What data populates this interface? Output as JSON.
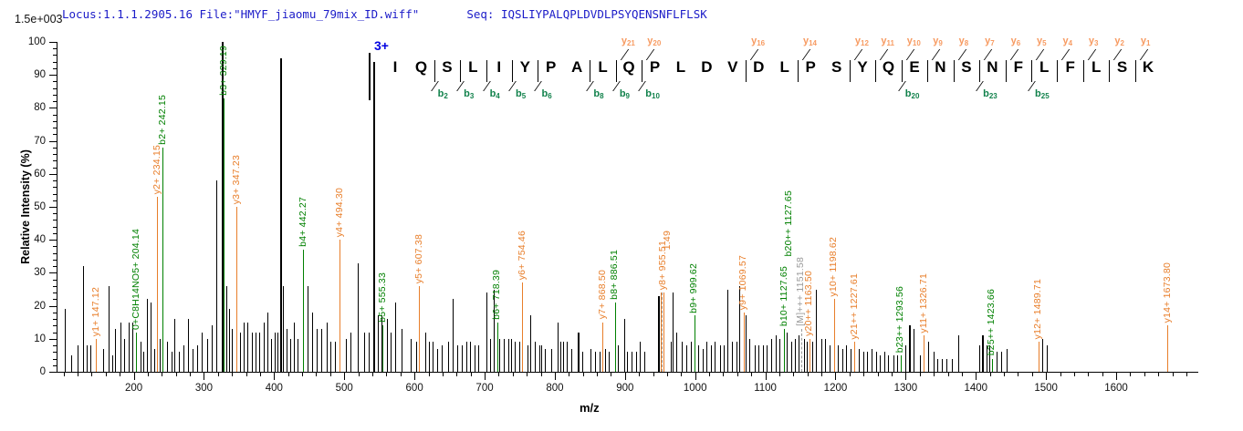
{
  "header": {
    "locus_file": "Locus:1.1.1.2905.16 File:\"HMYF_jiaomu_79mix_ID.wiff\"",
    "seq_label": "Seq: IQSLIYPALQPLDVDLPSYQENSNFLFLSK"
  },
  "scale_label": "1.5e+003",
  "charge_state": "3+",
  "sequence_panel": {
    "residues": [
      "I",
      "Q",
      "S",
      "L",
      "I",
      "Y",
      "P",
      "A",
      "L",
      "Q",
      "P",
      "L",
      "D",
      "V",
      "D",
      "L",
      "P",
      "S",
      "Y",
      "Q",
      "E",
      "N",
      "S",
      "N",
      "F",
      "L",
      "F",
      "L",
      "S",
      "K"
    ],
    "gaps": [
      {
        "after": 2,
        "b": "b2"
      },
      {
        "after": 3,
        "b": "b3"
      },
      {
        "after": 4,
        "b": "b4"
      },
      {
        "after": 5,
        "b": "b5"
      },
      {
        "after": 6,
        "b": "b6"
      },
      {
        "after": 8,
        "b": "b8"
      },
      {
        "after": 9,
        "b": "b9",
        "y": "y21"
      },
      {
        "after": 10,
        "b": "b10",
        "y": "y20"
      },
      {
        "after": 14,
        "y": "y16"
      },
      {
        "after": 16,
        "y": "y14"
      },
      {
        "after": 18,
        "y": "y12"
      },
      {
        "after": 19,
        "y": "y11"
      },
      {
        "after": 20,
        "b": "b20",
        "y": "y10"
      },
      {
        "after": 21,
        "y": "y9"
      },
      {
        "after": 22,
        "y": "y8"
      },
      {
        "after": 23,
        "b": "b23",
        "y": "y7"
      },
      {
        "after": 24,
        "y": "y6"
      },
      {
        "after": 25,
        "b": "b25",
        "y": "y5"
      },
      {
        "after": 26,
        "y": "y4"
      },
      {
        "after": 27,
        "y": "y3"
      },
      {
        "after": 28,
        "y": "y2"
      },
      {
        "after": 29,
        "y": "y1"
      }
    ]
  },
  "axes": {
    "x": {
      "title": "m/z",
      "major_ticks": [
        200,
        300,
        400,
        500,
        600,
        700,
        800,
        900,
        1000,
        1100,
        1200,
        1300,
        1400,
        1500,
        1600
      ],
      "minor_step": 20,
      "range": [
        90,
        1717
      ]
    },
    "y": {
      "title": "Relative  Intensity (%)",
      "ticks": [
        0,
        10,
        20,
        30,
        40,
        50,
        60,
        70,
        80,
        90,
        100
      ],
      "minor_step": 2,
      "range": [
        0,
        100
      ]
    }
  },
  "chart_data": {
    "type": "bar",
    "subtype": "mass-spectrum",
    "xlabel": "m/z",
    "ylabel": "Relative Intensity (%)",
    "xlim": [
      90,
      1717
    ],
    "ylim": [
      0,
      100
    ],
    "grid": false,
    "colors": {
      "black_peak": "#000000",
      "b_ion_green": "#008000",
      "y_ion_orange": "#e87e2a",
      "precursor_gray": "#9a9a9a",
      "header_blue": "#1b1bc8",
      "charge_blue": "#0000e0",
      "seq_y_label_orange": "#f79b62",
      "seq_b_label_green": "#12824c"
    },
    "peak_format": "[mz, intensity_pct, optional_width_px]",
    "peaks_black": [
      [
        103,
        19
      ],
      [
        112,
        5
      ],
      [
        120,
        8
      ],
      [
        129,
        32
      ],
      [
        134,
        8
      ],
      [
        139,
        8
      ],
      [
        157,
        7
      ],
      [
        165,
        26
      ],
      [
        170,
        5
      ],
      [
        174,
        13
      ],
      [
        182,
        15
      ],
      [
        187,
        10
      ],
      [
        193,
        15
      ],
      [
        198,
        15
      ],
      [
        210,
        9
      ],
      [
        214,
        6
      ],
      [
        219,
        22
      ],
      [
        224,
        21
      ],
      [
        230,
        7
      ],
      [
        238,
        10
      ],
      [
        248,
        9
      ],
      [
        254,
        6
      ],
      [
        259,
        16
      ],
      [
        265,
        6
      ],
      [
        271,
        8
      ],
      [
        278,
        16
      ],
      [
        284,
        7
      ],
      [
        291,
        8
      ],
      [
        298,
        12
      ],
      [
        305,
        10
      ],
      [
        312,
        14
      ],
      [
        318,
        58
      ],
      [
        326,
        100,
        2
      ],
      [
        333,
        26
      ],
      [
        336,
        19
      ],
      [
        341,
        13
      ],
      [
        352,
        12
      ],
      [
        357,
        15
      ],
      [
        363,
        15
      ],
      [
        369,
        12
      ],
      [
        374,
        12
      ],
      [
        380,
        12
      ],
      [
        386,
        15
      ],
      [
        391,
        18
      ],
      [
        396,
        10
      ],
      [
        402,
        12
      ],
      [
        406,
        12
      ],
      [
        409,
        95,
        2
      ],
      [
        413,
        26
      ],
      [
        418,
        13
      ],
      [
        424,
        10
      ],
      [
        429,
        15
      ],
      [
        434,
        10
      ],
      [
        448,
        26
      ],
      [
        455,
        18
      ],
      [
        461,
        13
      ],
      [
        468,
        13
      ],
      [
        475,
        15
      ],
      [
        481,
        9
      ],
      [
        487,
        9
      ],
      [
        503,
        10
      ],
      [
        510,
        12
      ],
      [
        520,
        33
      ],
      [
        529,
        12
      ],
      [
        535,
        12
      ],
      [
        542,
        94,
        2
      ],
      [
        549,
        17
      ],
      [
        553,
        17
      ],
      [
        561,
        16
      ],
      [
        567,
        12
      ],
      [
        573,
        21
      ],
      [
        582,
        13
      ],
      [
        595,
        10
      ],
      [
        603,
        9
      ],
      [
        616,
        12
      ],
      [
        621,
        9
      ],
      [
        627,
        9
      ],
      [
        633,
        7
      ],
      [
        640,
        8
      ],
      [
        648,
        9
      ],
      [
        655,
        22
      ],
      [
        662,
        8
      ],
      [
        668,
        8
      ],
      [
        674,
        9
      ],
      [
        680,
        9
      ],
      [
        686,
        8
      ],
      [
        692,
        8
      ],
      [
        703,
        24
      ],
      [
        708,
        10
      ],
      [
        714,
        25
      ],
      [
        722,
        10
      ],
      [
        728,
        10
      ],
      [
        734,
        10
      ],
      [
        738,
        10
      ],
      [
        744,
        9
      ],
      [
        750,
        9
      ],
      [
        762,
        8
      ],
      [
        766,
        17
      ],
      [
        772,
        9
      ],
      [
        778,
        8
      ],
      [
        781,
        8
      ],
      [
        787,
        7
      ],
      [
        796,
        7
      ],
      [
        805,
        15
      ],
      [
        809,
        9
      ],
      [
        813,
        9
      ],
      [
        818,
        9
      ],
      [
        824,
        7
      ],
      [
        833,
        12,
        2
      ],
      [
        840,
        6
      ],
      [
        852,
        7
      ],
      [
        858,
        6
      ],
      [
        864,
        6
      ],
      [
        872,
        7
      ],
      [
        877,
        6
      ],
      [
        891,
        8
      ],
      [
        900,
        16
      ],
      [
        904,
        6
      ],
      [
        910,
        6
      ],
      [
        916,
        6
      ],
      [
        922,
        9
      ],
      [
        928,
        6
      ],
      [
        948,
        23,
        2
      ],
      [
        966,
        9
      ],
      [
        969,
        24
      ],
      [
        974,
        12
      ],
      [
        981,
        9
      ],
      [
        988,
        8
      ],
      [
        994,
        9
      ],
      [
        1005,
        8
      ],
      [
        1011,
        7
      ],
      [
        1017,
        9
      ],
      [
        1023,
        8
      ],
      [
        1029,
        9
      ],
      [
        1036,
        8
      ],
      [
        1042,
        8
      ],
      [
        1047,
        25
      ],
      [
        1053,
        9
      ],
      [
        1059,
        9
      ],
      [
        1064,
        26
      ],
      [
        1072,
        17
      ],
      [
        1078,
        10
      ],
      [
        1085,
        8
      ],
      [
        1091,
        8
      ],
      [
        1097,
        8
      ],
      [
        1103,
        8
      ],
      [
        1109,
        10
      ],
      [
        1115,
        11
      ],
      [
        1121,
        10
      ],
      [
        1131,
        12
      ],
      [
        1137,
        9
      ],
      [
        1143,
        10
      ],
      [
        1148,
        11
      ],
      [
        1156,
        10
      ],
      [
        1160,
        9
      ],
      [
        1168,
        9
      ],
      [
        1173,
        25
      ],
      [
        1180,
        10
      ],
      [
        1186,
        10
      ],
      [
        1192,
        8
      ],
      [
        1204,
        8
      ],
      [
        1210,
        7
      ],
      [
        1216,
        8
      ],
      [
        1222,
        7
      ],
      [
        1234,
        7
      ],
      [
        1240,
        6
      ],
      [
        1246,
        6
      ],
      [
        1252,
        7
      ],
      [
        1258,
        6
      ],
      [
        1264,
        5
      ],
      [
        1270,
        6
      ],
      [
        1276,
        5
      ],
      [
        1283,
        5
      ],
      [
        1289,
        5
      ],
      [
        1300,
        8
      ],
      [
        1305,
        14,
        2
      ],
      [
        1312,
        13
      ],
      [
        1321,
        5
      ],
      [
        1333,
        9
      ],
      [
        1340,
        6
      ],
      [
        1346,
        4
      ],
      [
        1352,
        4
      ],
      [
        1359,
        4
      ],
      [
        1366,
        4
      ],
      [
        1375,
        11
      ],
      [
        1405,
        8
      ],
      [
        1409,
        11,
        2
      ],
      [
        1416,
        8
      ],
      [
        1420,
        8
      ],
      [
        1430,
        6
      ],
      [
        1437,
        6
      ],
      [
        1444,
        7
      ],
      [
        1495,
        10
      ],
      [
        1502,
        8
      ]
    ],
    "peaks_annotated": [
      {
        "mz": 147.12,
        "pct": 10,
        "color": "orange",
        "label": "y1+ 147.12"
      },
      {
        "mz": 204.14,
        "pct": 12,
        "color": "green",
        "label": "0+C8H14NO5+ 204.14"
      },
      {
        "mz": 234.15,
        "pct": 53,
        "color": "orange",
        "label": "y2+ 234.15"
      },
      {
        "mz": 242.15,
        "pct": 68,
        "color": "green",
        "label": "b2+ 242.15"
      },
      {
        "mz": 329.19,
        "pct": 83,
        "color": "green",
        "label": "b3+ 329.19"
      },
      {
        "mz": 347.23,
        "pct": 50,
        "color": "orange",
        "label": "y3+ 347.23"
      },
      {
        "mz": 442.27,
        "pct": 37,
        "color": "green",
        "label": "b4+ 442.27"
      },
      {
        "mz": 494.3,
        "pct": 40,
        "color": "orange",
        "label": "y4+ 494.30"
      },
      {
        "mz": 555.33,
        "pct": 14,
        "color": "green",
        "label": "b5+ 555.33"
      },
      {
        "mz": 607.38,
        "pct": 26,
        "color": "orange",
        "label": "y5+ 607.38"
      },
      {
        "mz": 718.39,
        "pct": 15,
        "color": "green",
        "label": "b6+ 718.39"
      },
      {
        "mz": 754.46,
        "pct": 27,
        "color": "orange",
        "label": "y6+ 754.46"
      },
      {
        "mz": 868.5,
        "pct": 15,
        "color": "orange",
        "label": "y7+ 868.50"
      },
      {
        "mz": 886.51,
        "pct": 21,
        "color": "green",
        "label": "b8+ 886.51"
      },
      {
        "mz": 951.49,
        "pct": 24,
        "color": "orange",
        "label": ""
      },
      {
        "mz": 952.8,
        "pct": 24,
        "color": "gray",
        "label": "",
        "dashed": true
      },
      {
        "mz": 955.51,
        "pct": 24,
        "color": "orange",
        "label": "y8+ 955.51"
      },
      {
        "mz": 999.62,
        "pct": 17,
        "color": "green",
        "label": "b9+ 999.62"
      },
      {
        "mz": 1069.57,
        "pct": 18,
        "color": "orange",
        "label": "y9+ 1069.57"
      },
      {
        "mz": 1127.65,
        "pct": 13,
        "color": "green",
        "label": "b10+ 1127.65"
      },
      {
        "mz": 1151.58,
        "pct": 13,
        "color": "gray",
        "label": "[M]+++ 1151.58",
        "dashed": true
      },
      {
        "mz": 1163.5,
        "pct": 10,
        "color": "orange",
        "label": "y20++ 1163.50"
      },
      {
        "mz": 1198.62,
        "pct": 22,
        "color": "orange",
        "label": "y10+ 1198.62"
      },
      {
        "mz": 1227.61,
        "pct": 9,
        "color": "orange",
        "label": "y21++ 1227.61"
      },
      {
        "mz": 1293.56,
        "pct": 5,
        "color": "green",
        "label": "b23++ 1293.56"
      },
      {
        "mz": 1326.71,
        "pct": 11,
        "color": "orange",
        "label": "y11+ 1326.71"
      },
      {
        "mz": 1423.66,
        "pct": 4,
        "color": "green",
        "label": "b25++ 1423.66"
      },
      {
        "mz": 1489.71,
        "pct": 9,
        "color": "orange",
        "label": "y12+ 1489.71"
      },
      {
        "mz": 1673.8,
        "pct": 14,
        "color": "orange",
        "label": "y14+ 1673.80"
      }
    ],
    "floating_labels": [
      {
        "mz": 1134,
        "bottom_pct": 35,
        "color": "green",
        "text": "b20++ 1127.65"
      },
      {
        "mz": 961,
        "bottom_pct": 37,
        "color": "orange",
        "text": "1.49"
      }
    ]
  }
}
